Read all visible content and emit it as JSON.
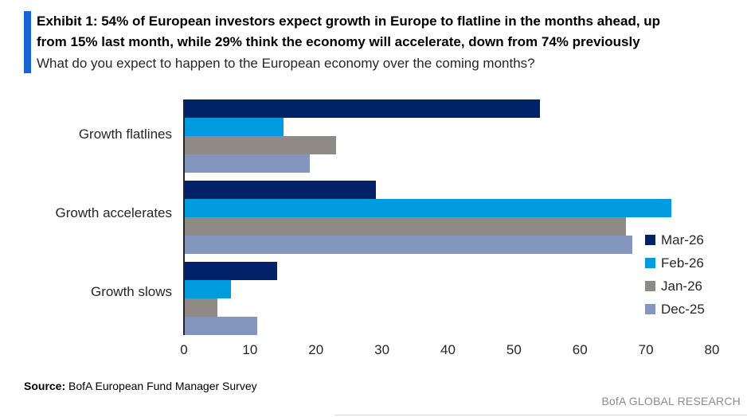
{
  "header": {
    "accent_color": "#1565d8",
    "title_lines": [
      "Exhibit 1: 54% of European investors expect growth in Europe to flatline in the months ahead, up",
      "from 15% last month, while 29% think the economy will accelerate, down from 74% previously"
    ],
    "subtitle": "What do you expect to happen to the European economy over the coming months?"
  },
  "chart_data": {
    "type": "bar",
    "orientation": "horizontal",
    "title": "What do you expect to happen to the European economy over the coming months?",
    "categories": [
      "Growth flatlines",
      "Growth accelerates",
      "Growth slows"
    ],
    "series": [
      {
        "name": "Mar-26",
        "color": "#012169",
        "values": [
          54,
          29,
          14
        ]
      },
      {
        "name": "Feb-26",
        "color": "#009ade",
        "values": [
          15,
          74,
          7
        ]
      },
      {
        "name": "Jan-26",
        "color": "#908a86",
        "values": [
          23,
          67,
          5
        ]
      },
      {
        "name": "Dec-25",
        "color": "#8496bd",
        "values": [
          19,
          68,
          11
        ]
      }
    ],
    "xlim": [
      0,
      80
    ],
    "xticks": [
      0,
      10,
      20,
      30,
      40,
      50,
      60,
      70,
      80
    ],
    "xlabel": "",
    "ylabel": "",
    "grid": false,
    "legend_position": "right",
    "axis_color": "#262626"
  },
  "footer": {
    "source_label": "Source:",
    "source_text": "BofA European Fund Manager Survey",
    "brand": "BofA GLOBAL RESEARCH"
  }
}
